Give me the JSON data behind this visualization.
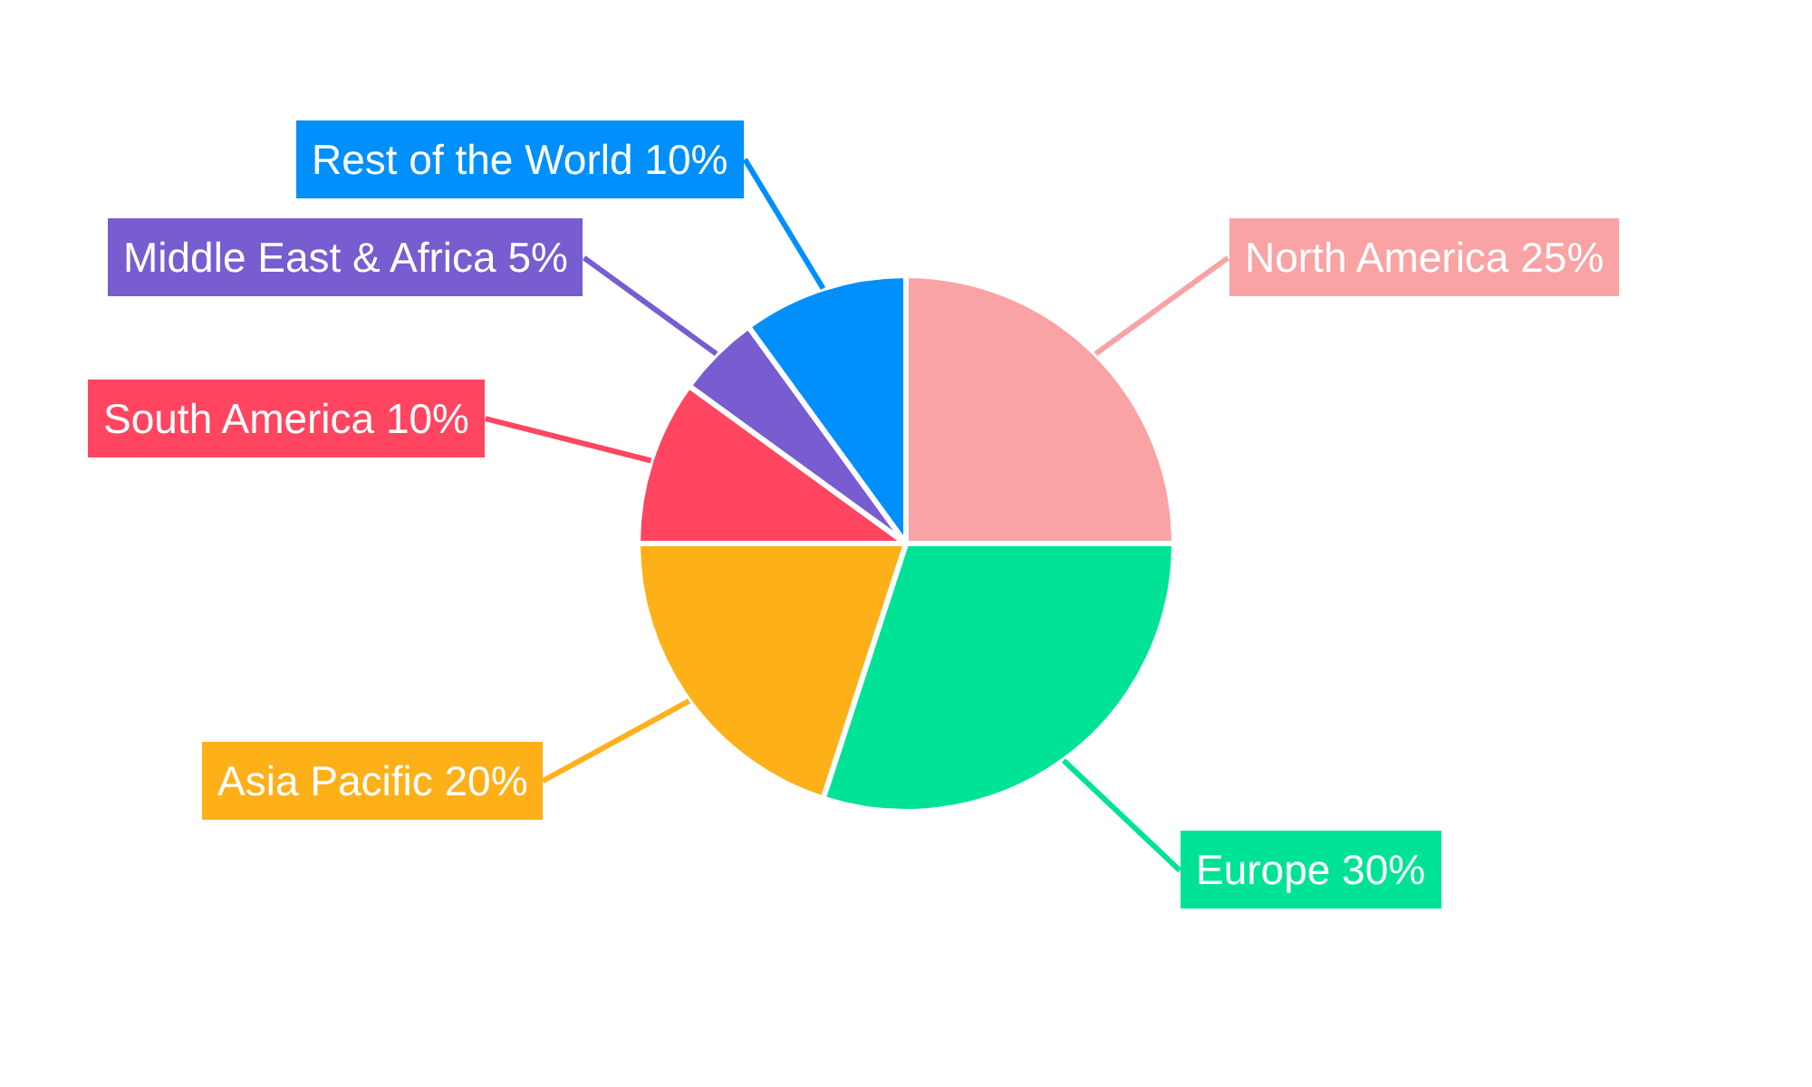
{
  "chart_data": {
    "type": "pie",
    "categories": [
      "North America",
      "Europe",
      "Asia Pacific",
      "South America",
      "Middle East & Africa",
      "Rest of the World"
    ],
    "values": [
      25,
      30,
      20,
      10,
      5,
      10
    ],
    "value_labels": [
      "25%",
      "30%",
      "20%",
      "10%",
      "5%",
      "10%"
    ],
    "colors": [
      "#f9a3a4",
      "#00e396",
      "#feb019",
      "#ff4560",
      "#775dd0",
      "#008ffb"
    ],
    "legend": false
  }
}
